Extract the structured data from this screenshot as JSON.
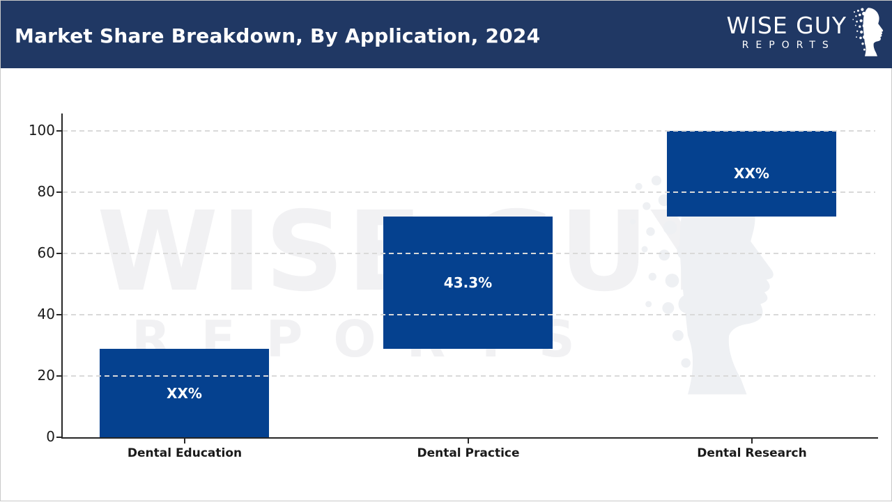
{
  "header": {
    "title": "Market Share Breakdown, By Application, 2024",
    "logo_line1": "WISE GUY",
    "logo_line2": "REPORTS"
  },
  "watermark": {
    "line1": "WISE GUY",
    "line2": "REPORTS"
  },
  "chart_data": {
    "type": "bar",
    "subtype": "waterfall",
    "title": "Market Share Breakdown, By Application, 2024",
    "categories": [
      "Dental Education",
      "Dental Practice",
      "Dental Research"
    ],
    "bars": [
      {
        "category": "Dental Education",
        "label": "XX%",
        "start": 0,
        "end": 28.8
      },
      {
        "category": "Dental Practice",
        "label": "43.3%",
        "start": 28.8,
        "end": 72.1
      },
      {
        "category": "Dental Research",
        "label": "XX%",
        "start": 72.1,
        "end": 100
      }
    ],
    "series_note": "segments stack sequentially to 100%",
    "yticks": [
      0,
      20,
      40,
      60,
      80,
      100
    ],
    "ylim": [
      0,
      105.7
    ],
    "xlabel": "",
    "ylabel": "",
    "legend": "none",
    "grid": "horizontal-dashed",
    "bar_color": "#05418f"
  },
  "colors": {
    "header_bg": "#203864",
    "bar_blue": "#05418f",
    "grid_line": "#d9d9d9",
    "axis": "#262626",
    "watermark": "#f0f1f3",
    "page_bg": "#ffffff"
  }
}
